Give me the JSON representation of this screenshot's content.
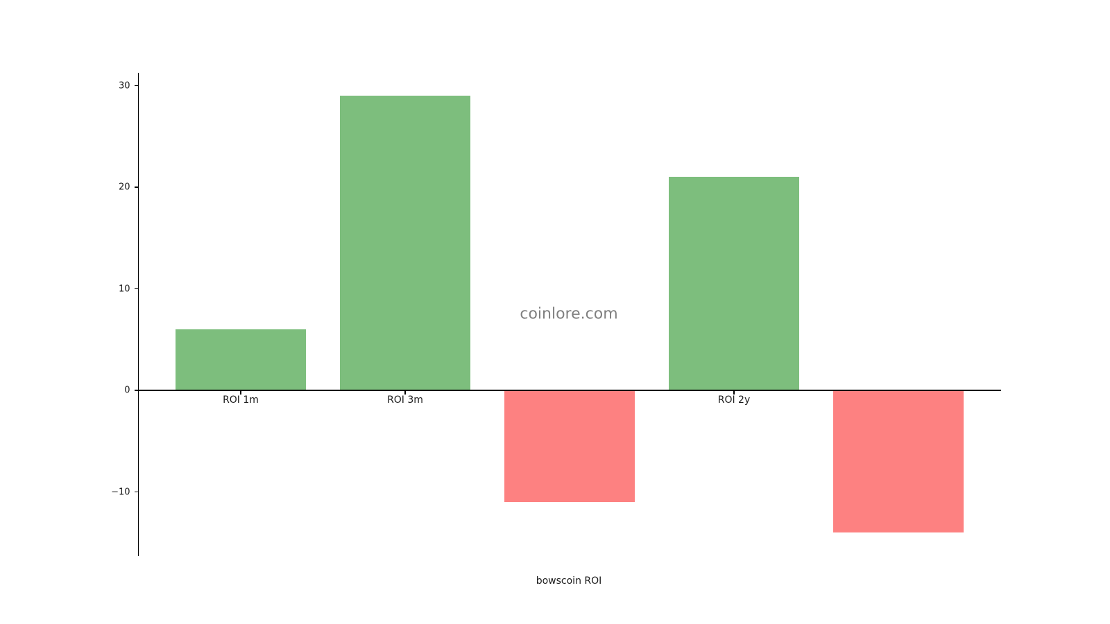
{
  "chart_data": {
    "type": "bar",
    "title": "",
    "xlabel": "bowscoin ROI",
    "ylabel": "",
    "watermark": "coinlore.com",
    "categories": [
      "ROI 1m",
      "ROI 3m",
      "",
      "ROI 2y",
      ""
    ],
    "values": [
      6,
      29,
      -11,
      21,
      -14
    ],
    "series": [
      {
        "name": "bowscoin ROI",
        "values": [
          6,
          29,
          -11,
          21,
          -14
        ]
      }
    ],
    "bar_colors": [
      "#7dbe7d",
      "#7dbe7d",
      "#fd8181",
      "#7dbe7d",
      "#fd8181"
    ],
    "positive_color": "#7dbe7d",
    "negative_color": "#fd8181",
    "y_ticks": [
      {
        "value": 30,
        "label": "30"
      },
      {
        "value": 20,
        "label": "20"
      },
      {
        "value": 10,
        "label": "10"
      },
      {
        "value": 0,
        "label": "0"
      },
      {
        "value": -10,
        "label": "−10"
      }
    ],
    "ylim": [
      -16.3,
      31.3
    ],
    "grid": false,
    "legend": "none",
    "axis_color": "#000000",
    "text_color": "#1a1a1a",
    "watermark_color": "#808080"
  }
}
